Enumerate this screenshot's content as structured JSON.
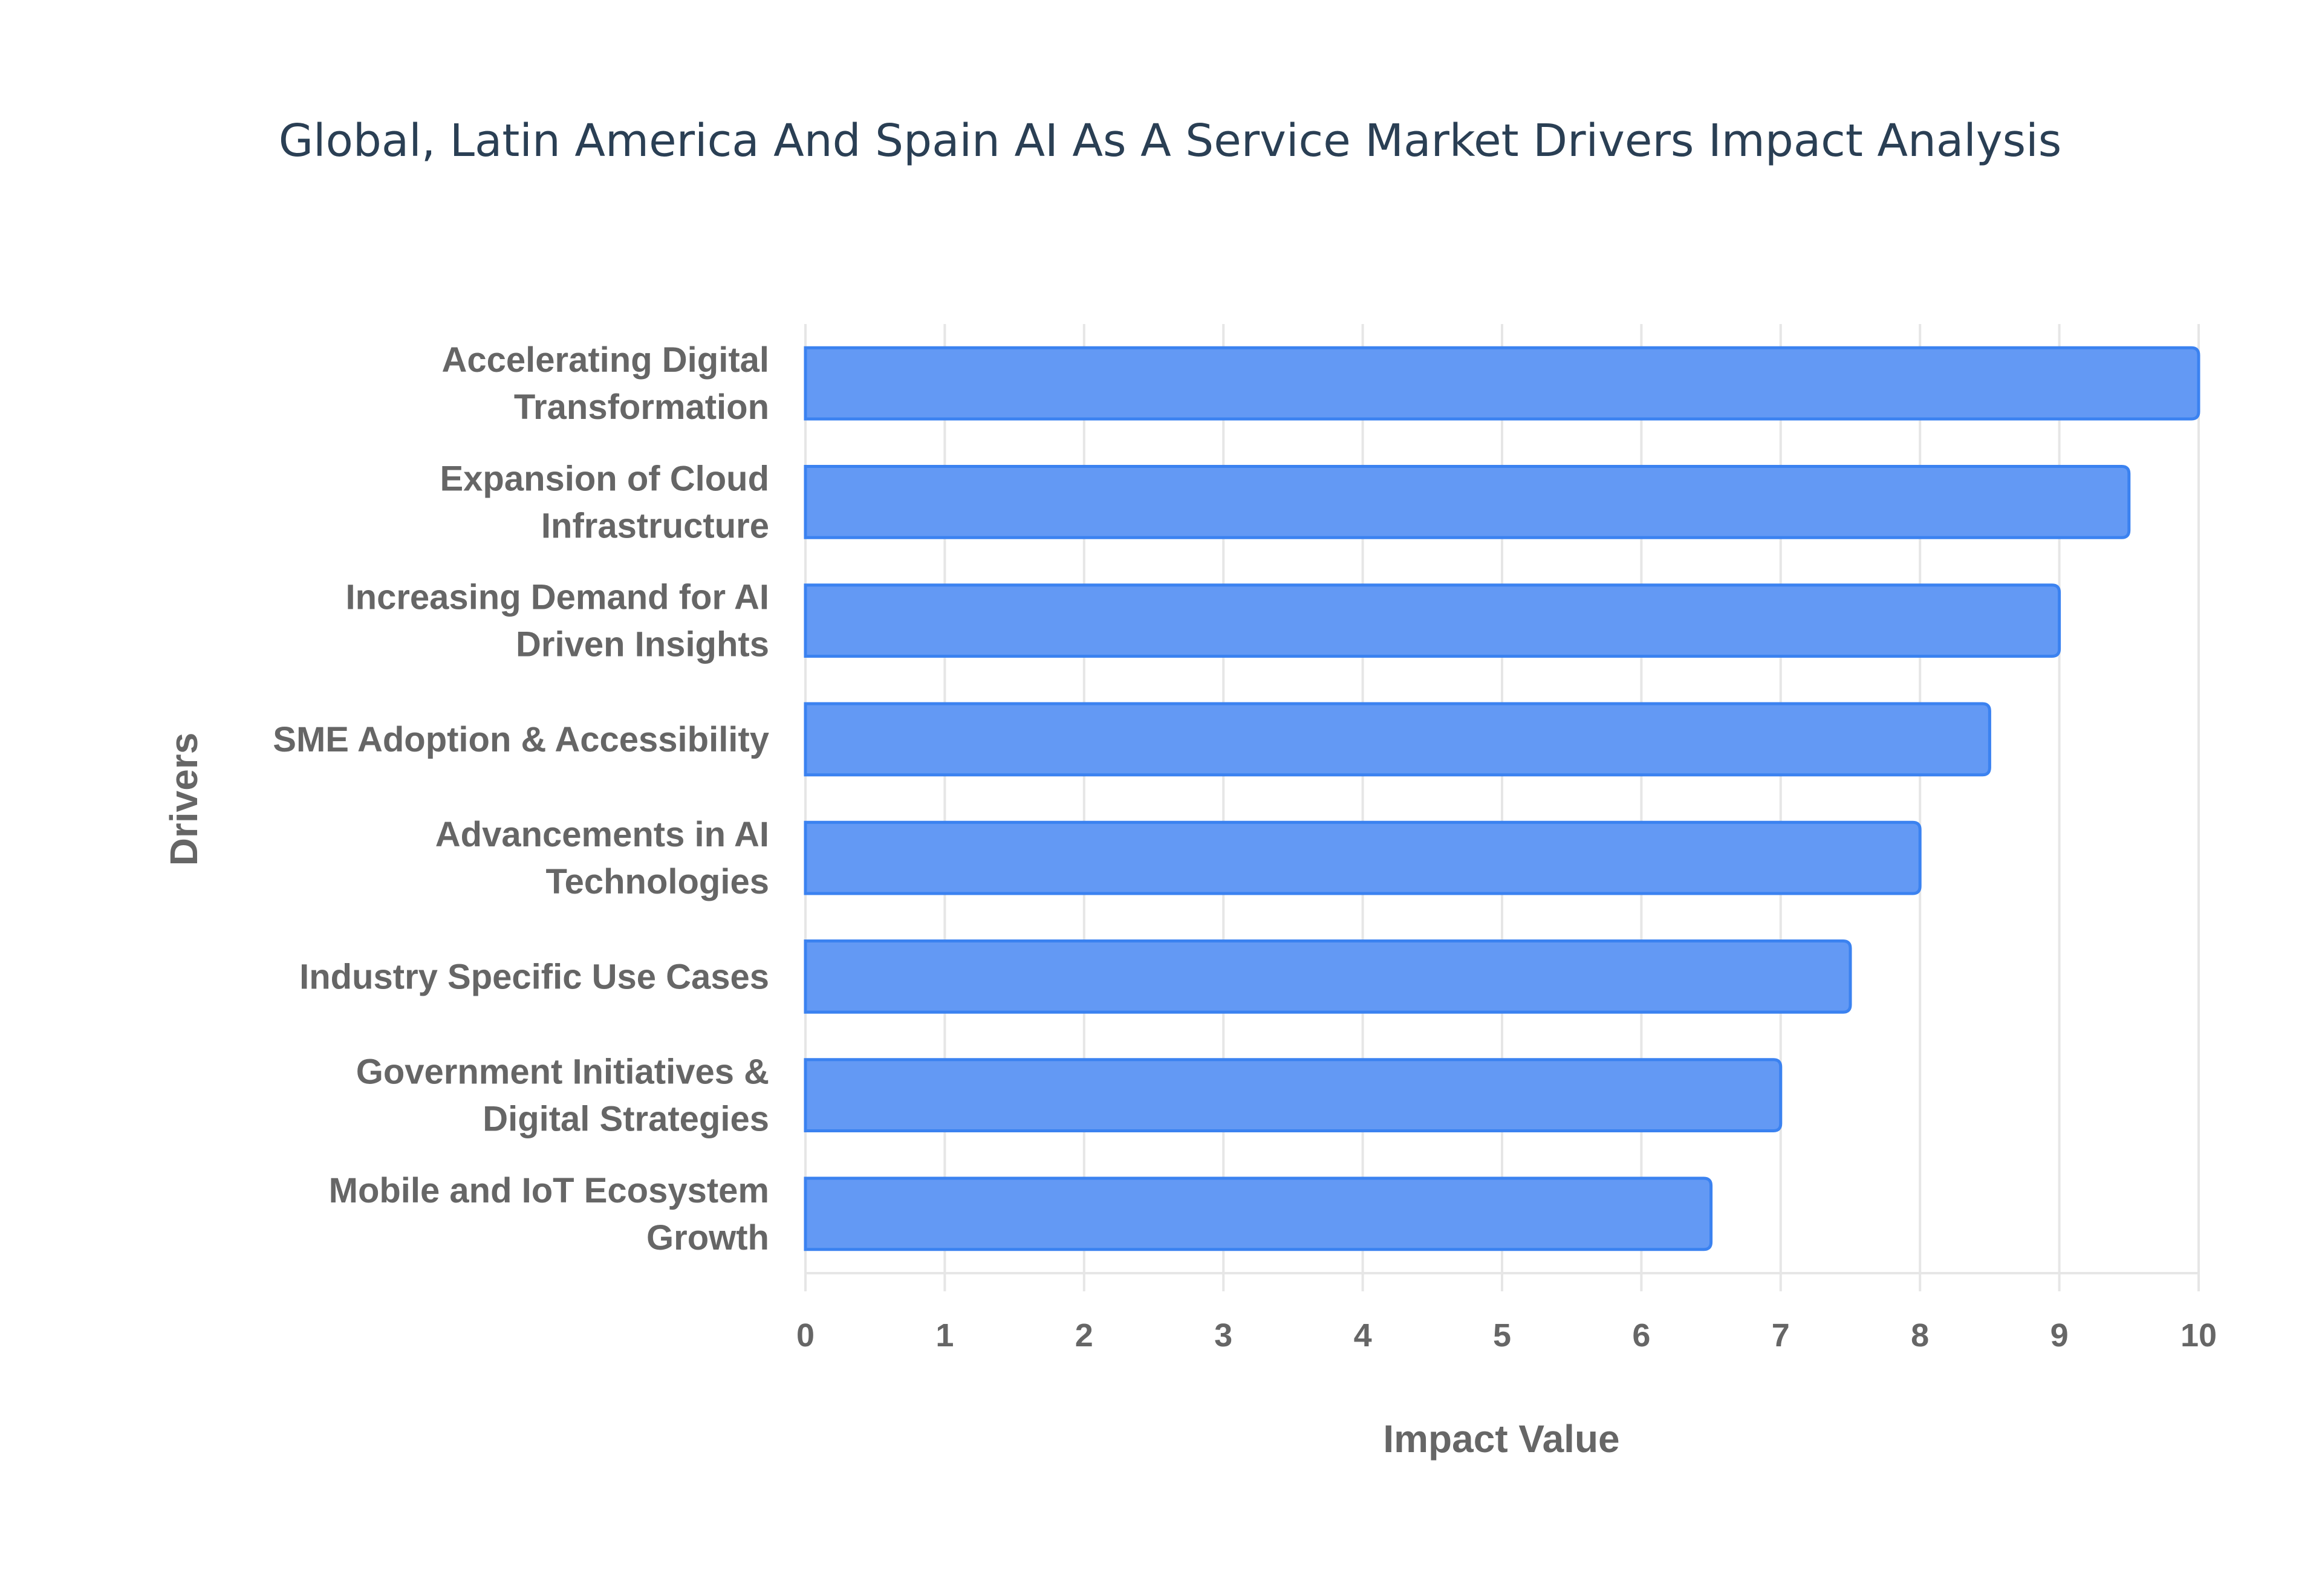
{
  "chart_data": {
    "type": "bar",
    "orientation": "horizontal",
    "title": "Global, Latin America And Spain AI As A Service Market Drivers Impact Analysis",
    "xlabel": "Impact Value",
    "ylabel": "Drivers",
    "xlim": [
      0,
      10
    ],
    "xticks": [
      "0",
      "1",
      "2",
      "3",
      "4",
      "5",
      "6",
      "7",
      "8",
      "9",
      "10"
    ],
    "grid": true,
    "categories": [
      [
        "Accelerating Digital",
        "Transformation"
      ],
      [
        "Expansion of Cloud",
        "Infrastructure"
      ],
      [
        "Increasing Demand for AI",
        "Driven Insights"
      ],
      [
        "SME Adoption & Accessibility"
      ],
      [
        "Advancements in AI",
        "Technologies"
      ],
      [
        "Industry Specific Use Cases"
      ],
      [
        "Government Initiatives &",
        "Digital Strategies"
      ],
      [
        "Mobile and IoT Ecosystem",
        "Growth"
      ]
    ],
    "values": [
      10,
      9.5,
      9,
      8.5,
      8,
      7.5,
      7,
      6.5
    ],
    "colors": {
      "bar_fill": "#6399f4",
      "bar_border": "#3b82f0",
      "grid": "#e6e6e6",
      "text": "#666666",
      "title": "#2a3f54"
    }
  }
}
